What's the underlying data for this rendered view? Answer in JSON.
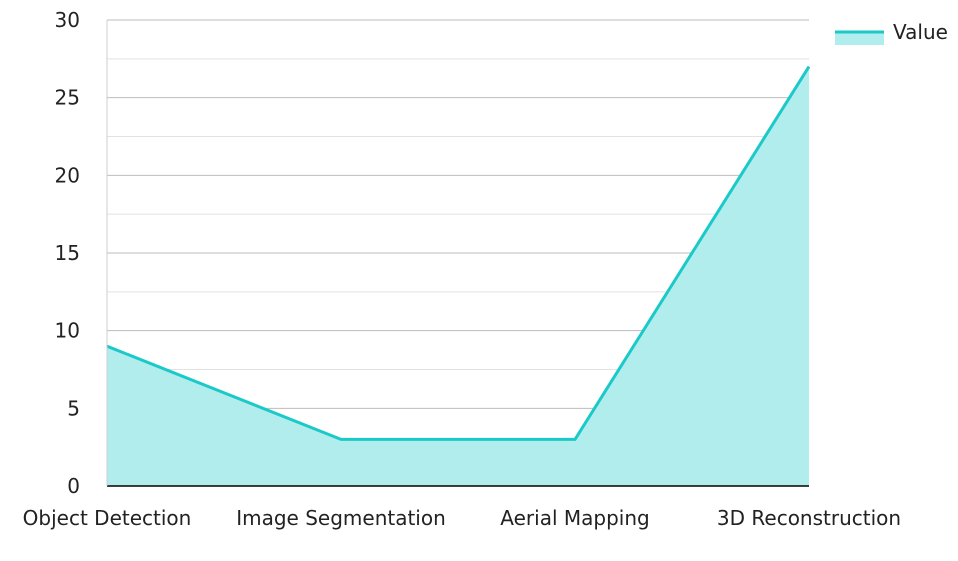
{
  "chart_data": {
    "type": "area",
    "categories": [
      "Object Detection",
      "Image Segmentation",
      "Aerial Mapping",
      "3D Reconstruction"
    ],
    "series": [
      {
        "name": "Value",
        "values": [
          9,
          3,
          3,
          27
        ]
      }
    ],
    "title": "",
    "xlabel": "",
    "ylabel": "",
    "ylim": [
      0,
      30
    ],
    "yticks": [
      0,
      5,
      10,
      15,
      20,
      25,
      30
    ],
    "grid": true,
    "legend_position": "top-right",
    "colors": {
      "line": "#1cc9c9",
      "fill": "#b2eded"
    }
  }
}
